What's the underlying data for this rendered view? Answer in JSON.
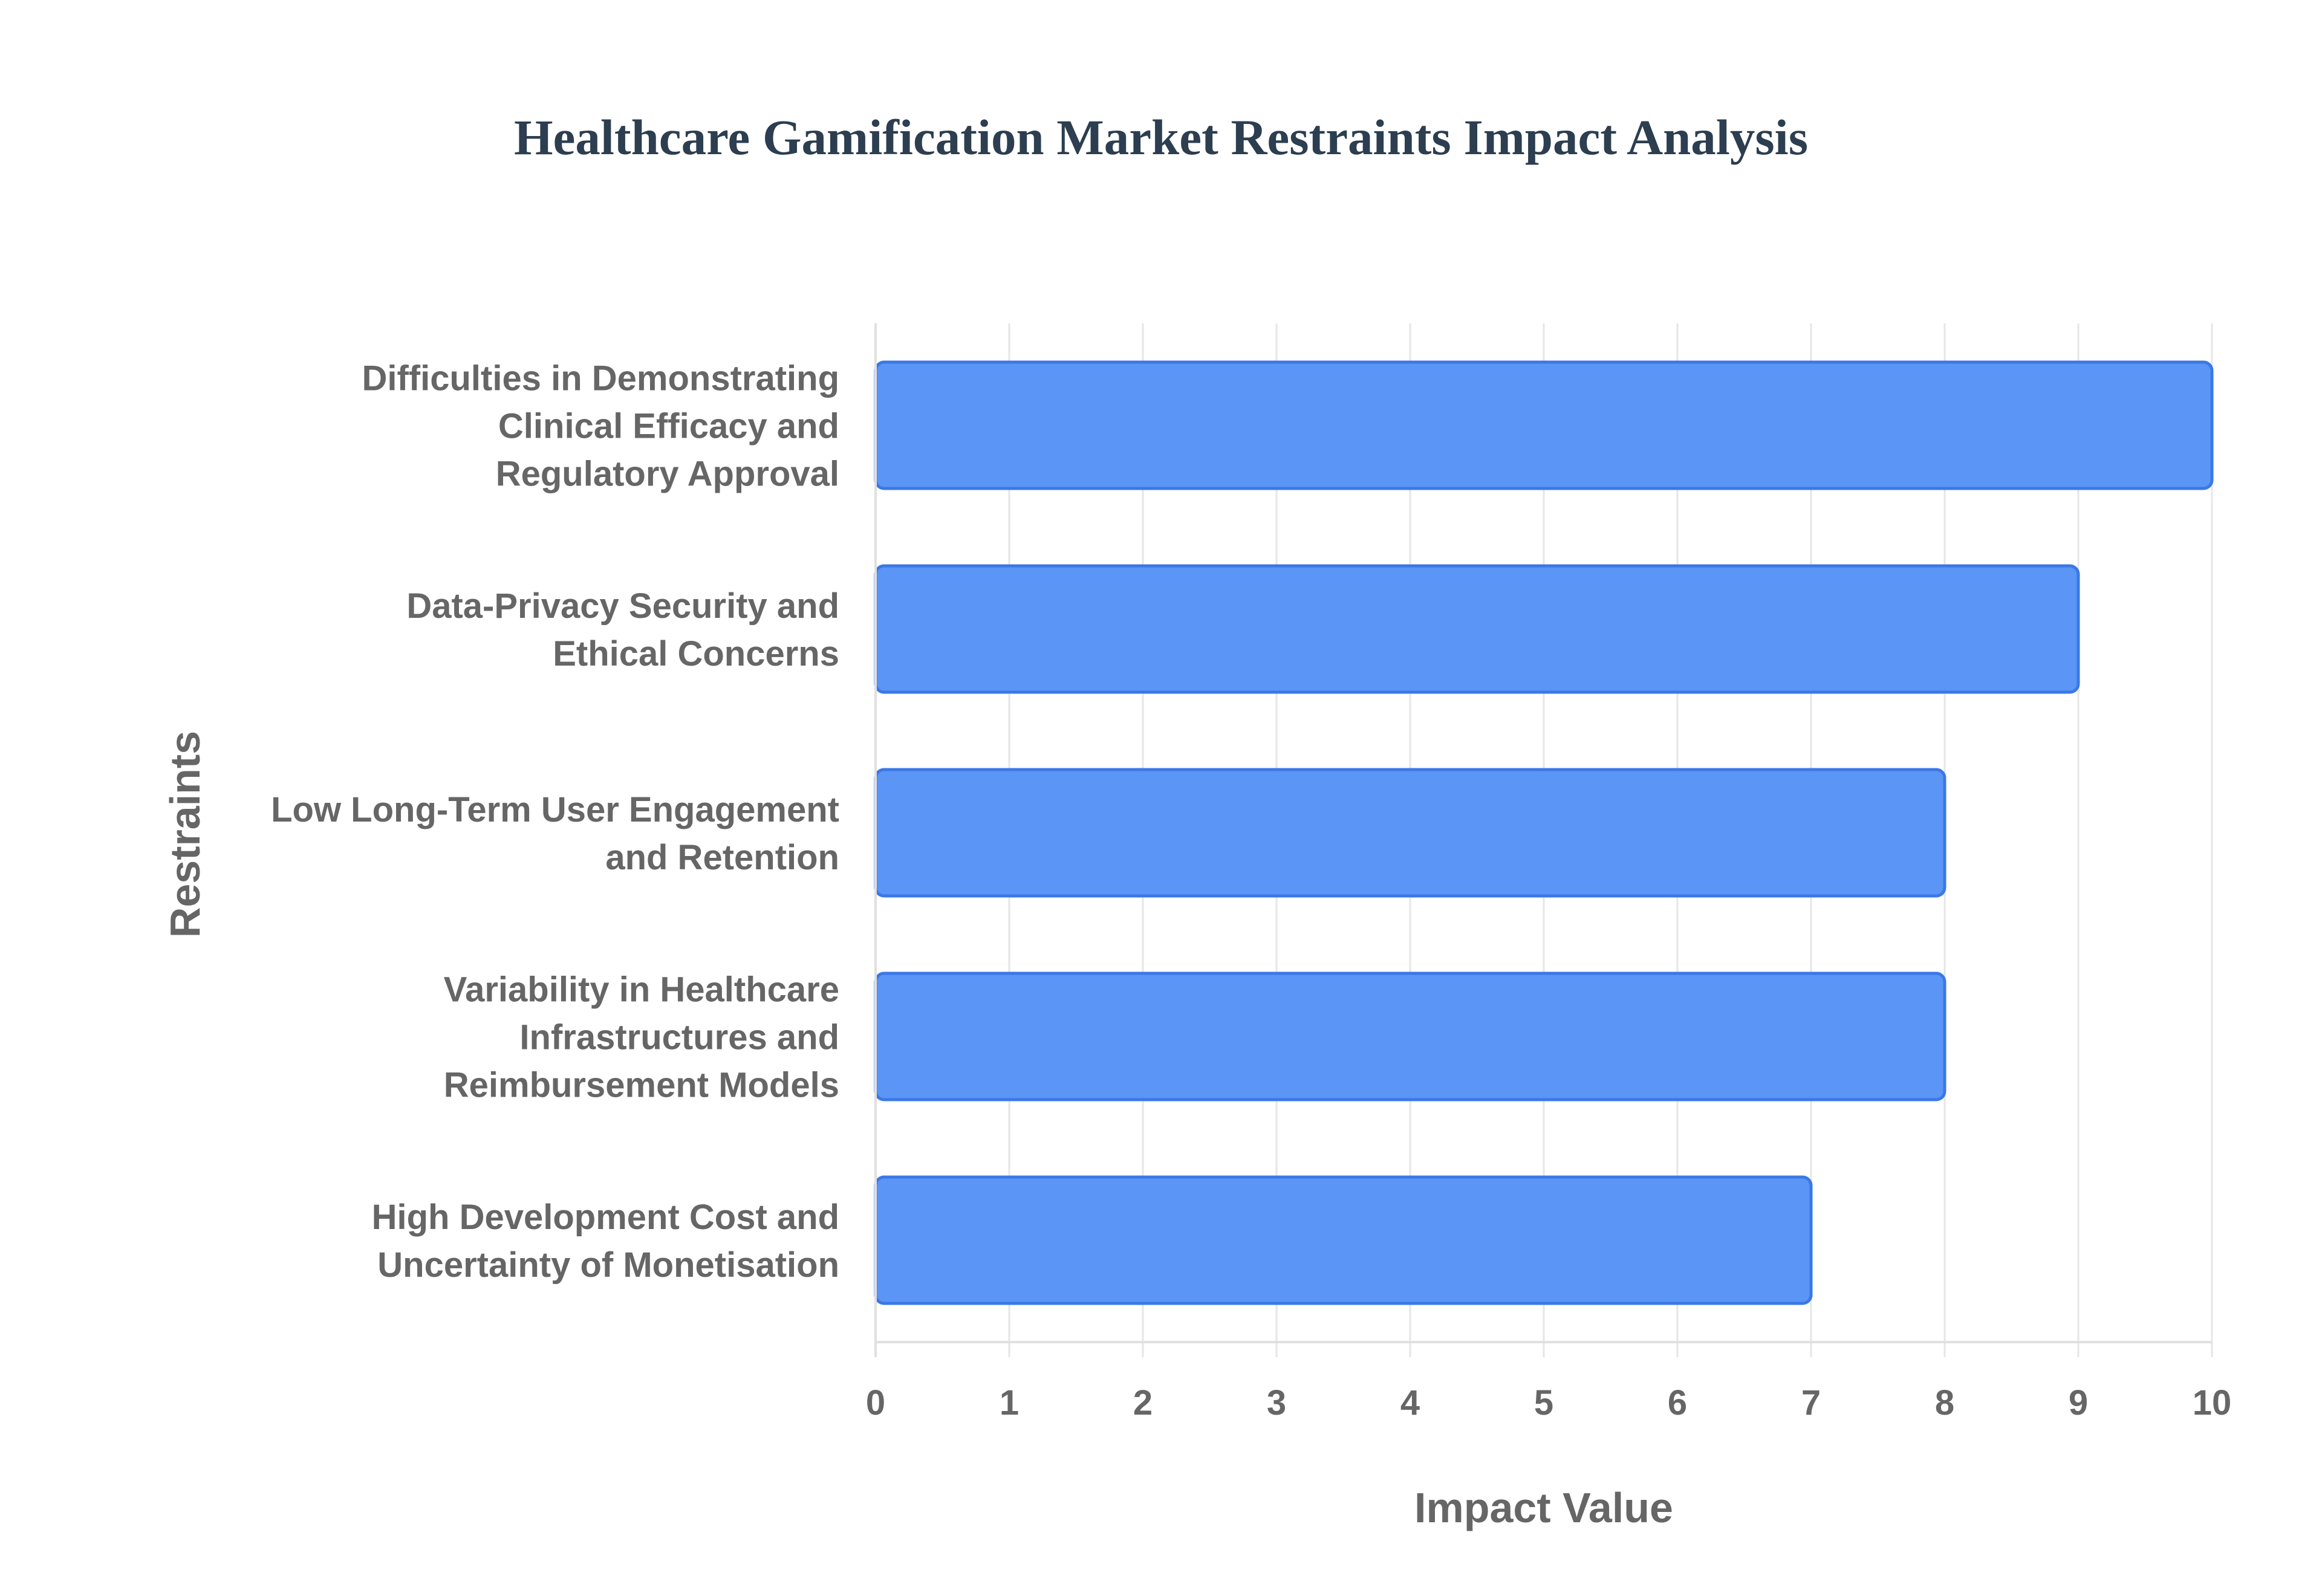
{
  "chart_data": {
    "type": "bar",
    "orientation": "horizontal",
    "title": "Healthcare Gamification Market Restraints Impact Analysis",
    "xlabel": "Impact Value",
    "ylabel": "Restraints",
    "xlim": [
      0,
      10
    ],
    "x_ticks": [
      0,
      1,
      2,
      3,
      4,
      5,
      6,
      7,
      8,
      9,
      10
    ],
    "grid": true,
    "legend": "none",
    "bar_color": "#5b95f5",
    "bar_border_color": "#3b78e7",
    "categories": [
      [
        "Difficulties in Demonstrating",
        "Clinical Efficacy and",
        "Regulatory Approval"
      ],
      [
        "Data-Privacy Security and",
        "Ethical Concerns"
      ],
      [
        "Low Long-Term User Engagement",
        "and Retention"
      ],
      [
        "Variability in Healthcare",
        "Infrastructures and",
        "Reimbursement Models"
      ],
      [
        "High Development Cost and",
        "Uncertainty of Monetisation"
      ]
    ],
    "values": [
      10,
      9,
      8,
      8,
      7
    ]
  }
}
